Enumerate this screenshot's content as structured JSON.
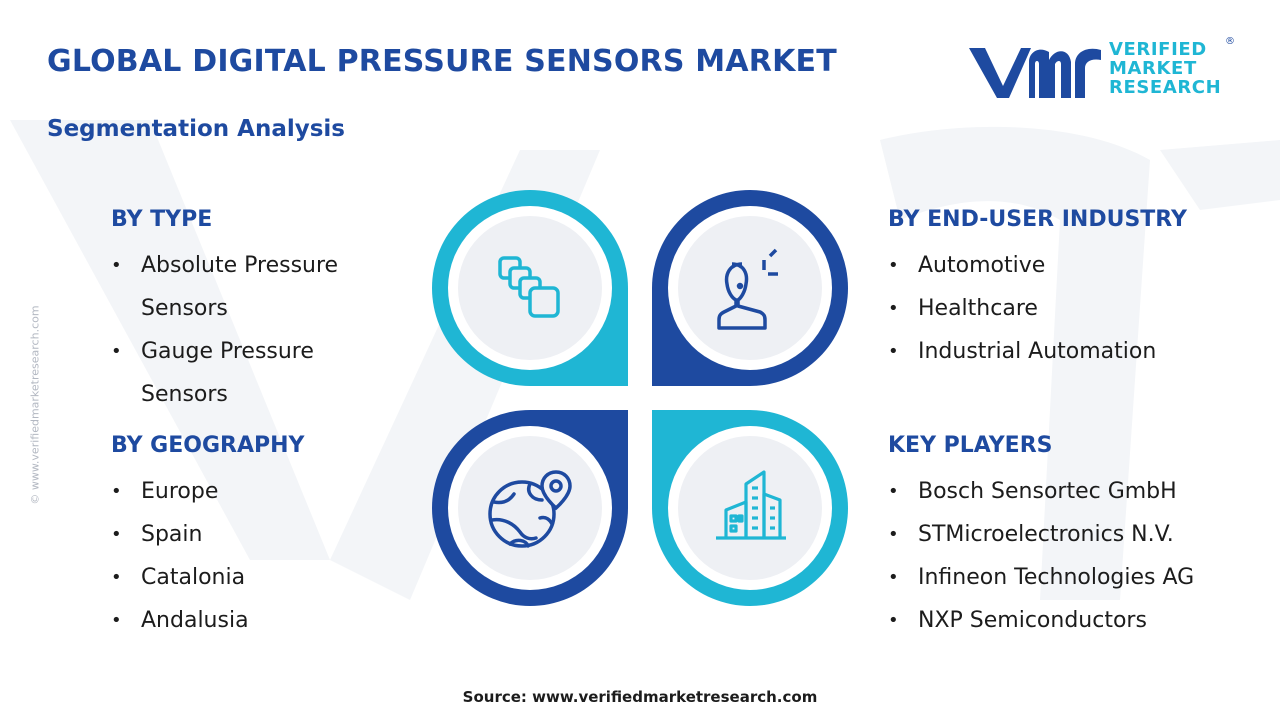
{
  "header": {
    "title": "GLOBAL DIGITAL PRESSURE SENSORS MARKET",
    "subtitle": "Segmentation Analysis"
  },
  "logo": {
    "lines": [
      "VERIFIED",
      "MARKET",
      "RESEARCH"
    ],
    "registered": "®"
  },
  "side_watermark": "© www.verifiedmarketresearch.com",
  "segments": {
    "type": {
      "title": "BY TYPE",
      "items": [
        "Absolute Pressure Sensors",
        "Gauge Pressure Sensors"
      ]
    },
    "end_user": {
      "title": "BY END-USER INDUSTRY",
      "items": [
        "Automotive",
        "Healthcare",
        "Industrial Automation"
      ]
    },
    "geography": {
      "title": "BY GEOGRAPHY",
      "items": [
        "Europe",
        "Spain",
        "Catalonia",
        "Andalusia"
      ]
    },
    "key_players": {
      "title": "KEY PLAYERS",
      "items": [
        "Bosch Sensortec GmbH",
        "STMicroelectronics N.V.",
        "Infineon Technologies AG",
        "NXP Semiconductors"
      ]
    }
  },
  "icons": [
    "stacked-squares-icon",
    "user-icon",
    "globe-location-icon",
    "buildings-icon"
  ],
  "colors": {
    "navy": "#1e4aa0",
    "cyan": "#1fb6d4",
    "inner_circle": "#eef0f4"
  },
  "source": "Source: www.verifiedmarketresearch.com"
}
